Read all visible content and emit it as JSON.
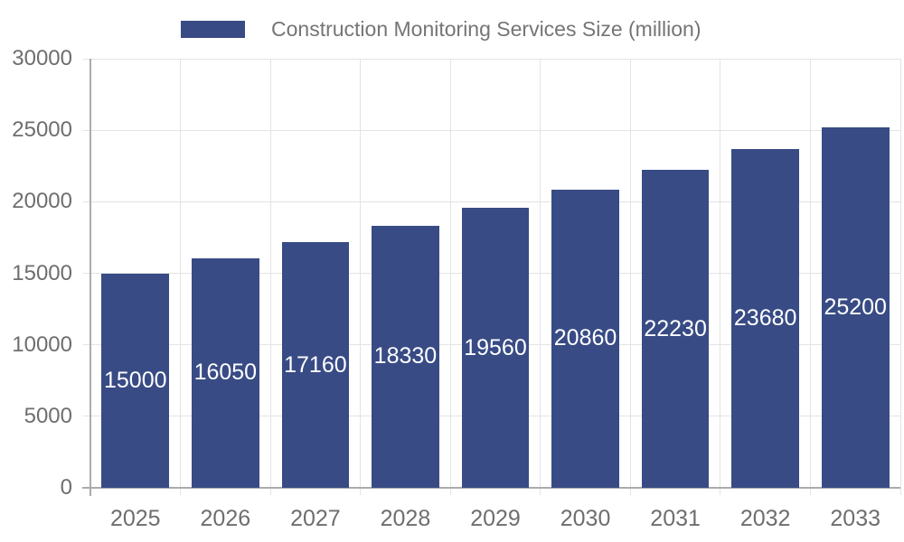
{
  "legend": {
    "label": "Construction Monitoring Services Size (million)"
  },
  "chart_data": {
    "type": "bar",
    "title": "Construction Monitoring Services Size (million)",
    "categories": [
      "2025",
      "2026",
      "2027",
      "2028",
      "2029",
      "2030",
      "2031",
      "2032",
      "2033"
    ],
    "values": [
      15000,
      16050,
      17160,
      18330,
      19560,
      20860,
      22230,
      23680,
      25200
    ],
    "series": [
      {
        "name": "Construction Monitoring Services Size (million)",
        "values": [
          15000,
          16050,
          17160,
          18330,
          19560,
          20860,
          22230,
          23680,
          25200
        ]
      }
    ],
    "xlabel": "",
    "ylabel": "",
    "ylim": [
      0,
      30000
    ],
    "yticks": [
      0,
      5000,
      10000,
      15000,
      20000,
      25000,
      30000
    ],
    "grid": true,
    "legend_position": "top",
    "bar_color": "#384B85",
    "bar_label_color": "#ffffff",
    "grid_color": "#e3e3e3",
    "axis_line_color": "#ababab",
    "tick_label_color": "#6e6e6e",
    "legend_text_color": "#757575"
  }
}
